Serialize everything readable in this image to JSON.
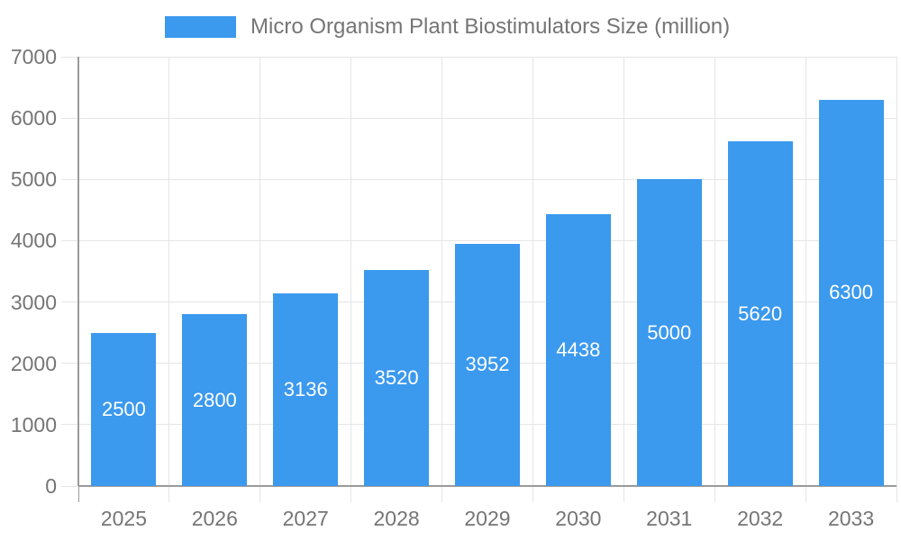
{
  "legend": {
    "label": "Micro Organism Plant Biostimulators Size (million)"
  },
  "colors": {
    "bar": "#3b99ee",
    "grid": "#e5e5e5",
    "axis": "#9b9b9b",
    "text": "#757575",
    "bar_label": "#ffffff",
    "background": "#ffffff"
  },
  "chart_data": {
    "type": "bar",
    "title": "Micro Organism Plant Biostimulators Size (million)",
    "series_name": "Micro Organism Plant Biostimulators Size (million)",
    "categories": [
      "2025",
      "2026",
      "2027",
      "2028",
      "2029",
      "2030",
      "2031",
      "2032",
      "2033"
    ],
    "values": [
      2500,
      2800,
      3136,
      3520,
      3952,
      4438,
      5000,
      5620,
      6300
    ],
    "value_labels": [
      "2500",
      "2800",
      "3136",
      "3520",
      "3952",
      "4438",
      "5000",
      "5620",
      "6300"
    ],
    "value_label_position": "inside-center",
    "xlabel": "",
    "ylabel": "",
    "ylim": [
      0,
      7000
    ],
    "ytick_step": 1000,
    "yticks": [
      0,
      1000,
      2000,
      3000,
      4000,
      5000,
      6000,
      7000
    ],
    "grid": true,
    "legend_position": "top-center"
  }
}
